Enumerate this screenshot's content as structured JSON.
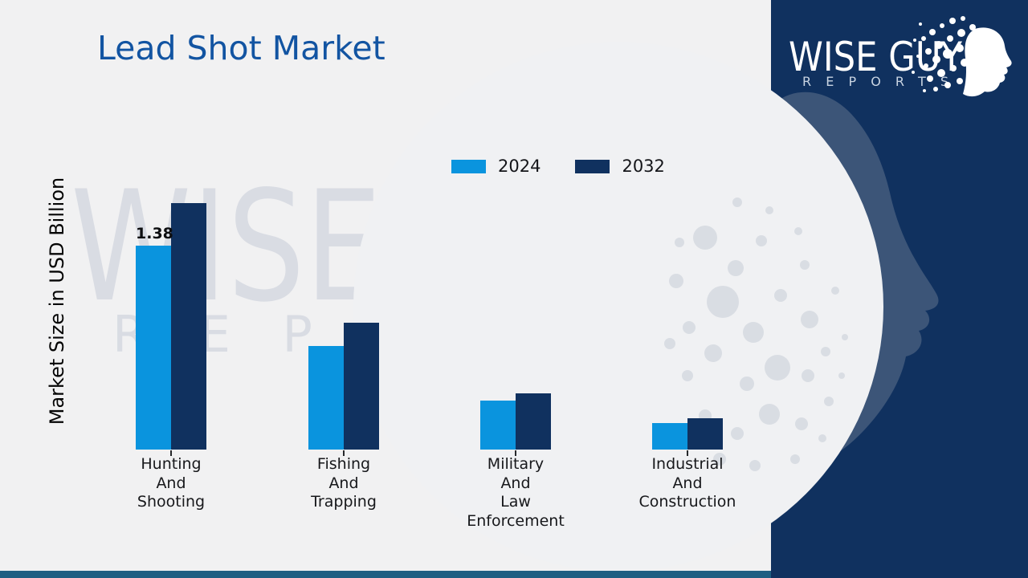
{
  "page": {
    "title": "Lead Shot Market",
    "title_color": "#1254a2",
    "background": "#f1f1f2"
  },
  "watermark": {
    "line1": "WISE GUY",
    "line2": "REPORTS"
  },
  "logo": {
    "line1": "WISE GUY",
    "line2": "REPORTS"
  },
  "theme": {
    "band_color": "#10315f",
    "footer_color": "#1e5e82",
    "face_color": "#3c5578",
    "sphere_color": "#f0f1f3",
    "watermark_color": "#d9dce3",
    "logo_text_color": "#ffffff",
    "logo_subtext_color": "#c9d4e2"
  },
  "chart_data": {
    "type": "bar",
    "title": "Lead Shot Market",
    "xlabel": "",
    "ylabel": "Market Size in USD Billion",
    "categories": [
      "Hunting And Shooting",
      "Fishing And Trapping",
      "Military And Law Enforcement",
      "Industrial And Construction"
    ],
    "category_lines": [
      [
        "Hunting",
        "And",
        "Shooting"
      ],
      [
        "Fishing",
        "And",
        "Trapping"
      ],
      [
        "Military",
        "And",
        "Law",
        "Enforcement"
      ],
      [
        "Industrial",
        "And",
        "Construction"
      ]
    ],
    "series": [
      {
        "name": "2024",
        "color": "#0a94de",
        "values": [
          1.38,
          0.7,
          0.33,
          0.18
        ]
      },
      {
        "name": "2032",
        "color": "#10315f",
        "values": [
          1.67,
          0.86,
          0.38,
          0.21
        ]
      }
    ],
    "annotations": [
      {
        "series": 0,
        "index": 0,
        "text": "1.38"
      }
    ],
    "ylim": [
      0,
      2
    ],
    "grid": false,
    "legend_position": "top"
  }
}
